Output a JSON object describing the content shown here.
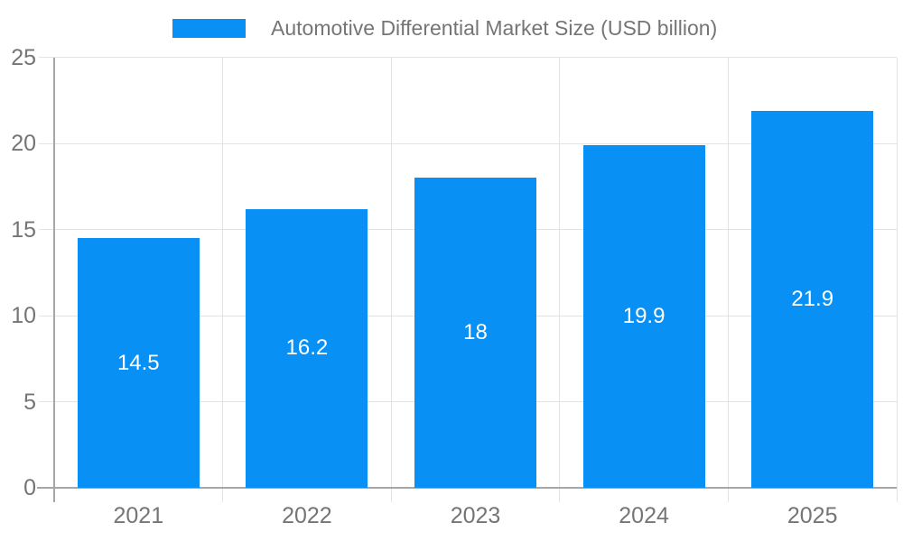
{
  "window": {
    "background": "#ffffff"
  },
  "legend": {
    "label": "Automotive Differential Market Size (USD billion)"
  },
  "chart_data": {
    "type": "bar",
    "title": "Automotive Differential Market Size (USD billion)",
    "categories": [
      "2021",
      "2022",
      "2023",
      "2024",
      "2025"
    ],
    "values": [
      14.5,
      16.2,
      18,
      19.9,
      21.9
    ],
    "value_labels": [
      "14.5",
      "16.2",
      "18",
      "19.9",
      "21.9"
    ],
    "xlabel": "",
    "ylabel": "",
    "ylim": [
      0,
      25
    ],
    "yticks": [
      0,
      5,
      10,
      15,
      20,
      25
    ],
    "grid": true,
    "legend_position": "top-center",
    "colors": {
      "bar": "#0990f5",
      "value_label": "#ffffff",
      "axis_line": "#a6a6a6",
      "gridline": "#e3e3e3",
      "tick_text": "#757575",
      "title_text": "#757575"
    }
  }
}
